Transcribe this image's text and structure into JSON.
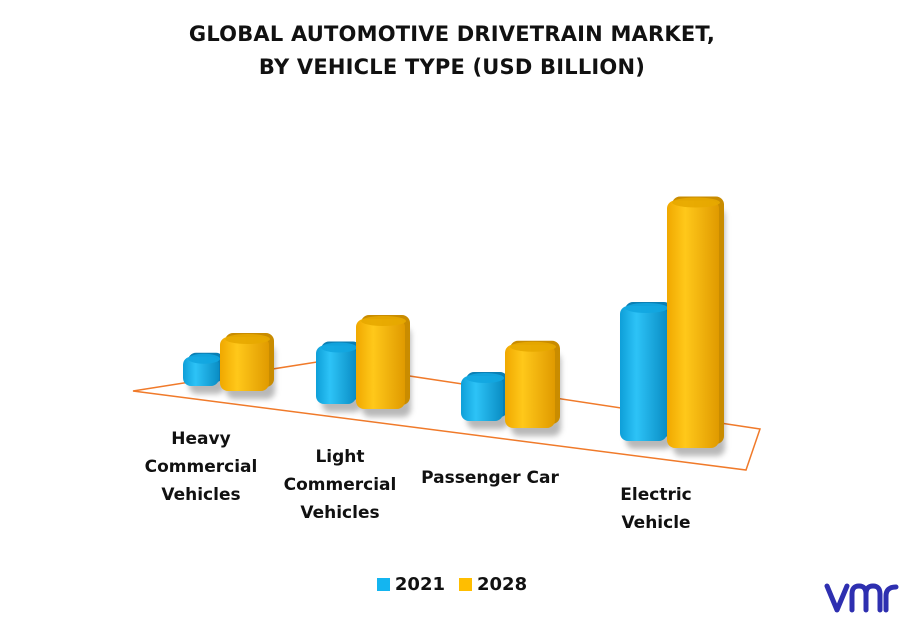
{
  "title_lines": [
    "GLOBAL AUTOMOTIVE DRIVETRAIN MARKET,",
    "BY VEHICLE TYPE (USD BILLION)"
  ],
  "legend": [
    {
      "label": "2021",
      "color": "#14B5F0"
    },
    {
      "label": "2028",
      "color": "#FFBE00"
    }
  ],
  "logo_text": "vmr",
  "colors": {
    "floor_outline": "#F07A2A",
    "bar_2021": "#14B5F0",
    "bar_2028": "#FFBE00"
  },
  "chart_data": {
    "type": "bar",
    "title": "GLOBAL AUTOMOTIVE DRIVETRAIN MARKET, BY VEHICLE TYPE (USD BILLION)",
    "categories": [
      [
        "Heavy",
        "Commercial",
        "Vehicles"
      ],
      [
        "Light",
        "Commercial",
        "Vehicles"
      ],
      [
        "Passenger Car"
      ],
      [
        "Electric",
        "Vehicle"
      ]
    ],
    "series": [
      {
        "name": "2021",
        "values": [
          1.3,
          2.6,
          2.0,
          6.0
        ]
      },
      {
        "name": "2028",
        "values": [
          2.4,
          4.0,
          3.7,
          11.0
        ]
      }
    ],
    "legend_position": "bottom",
    "grid": false
  }
}
